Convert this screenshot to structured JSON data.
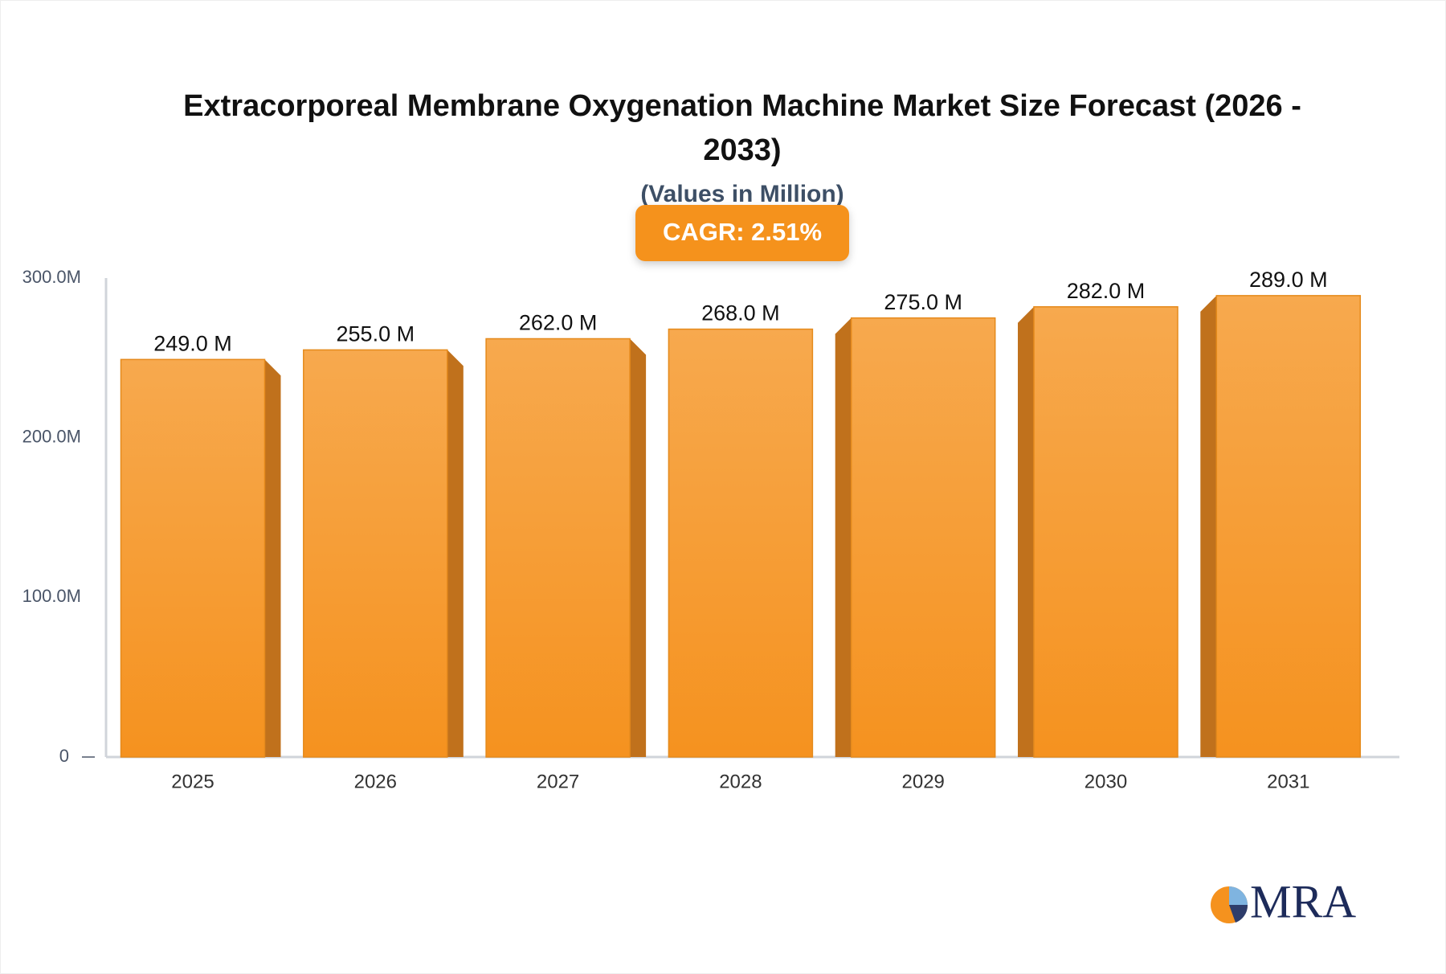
{
  "chart_data": {
    "type": "bar",
    "title": "Extracorporeal Membrane Oxygenation Machine Market Size Forecast (2026 - 2033)",
    "subtitle": "(Values in Million)",
    "annotation": "CAGR: 2.51%",
    "categories": [
      "2025",
      "2026",
      "2027",
      "2028",
      "2029",
      "2030",
      "2031"
    ],
    "values": [
      249,
      255,
      262,
      268,
      275,
      282,
      289
    ],
    "value_labels": [
      "249.0 M",
      "255.0 M",
      "262.0 M",
      "268.0 M",
      "275.0 M",
      "282.0 M",
      "289.0 M"
    ],
    "color": "#f59a2c",
    "ylim": [
      0,
      300
    ],
    "yticks": [
      0,
      {
        "value": 100,
        "label": "100.0M"
      },
      {
        "value": 200,
        "label": "200.0M"
      },
      {
        "value": 300,
        "label": "300.0M"
      }
    ],
    "grid": false,
    "logo": "MRA"
  }
}
